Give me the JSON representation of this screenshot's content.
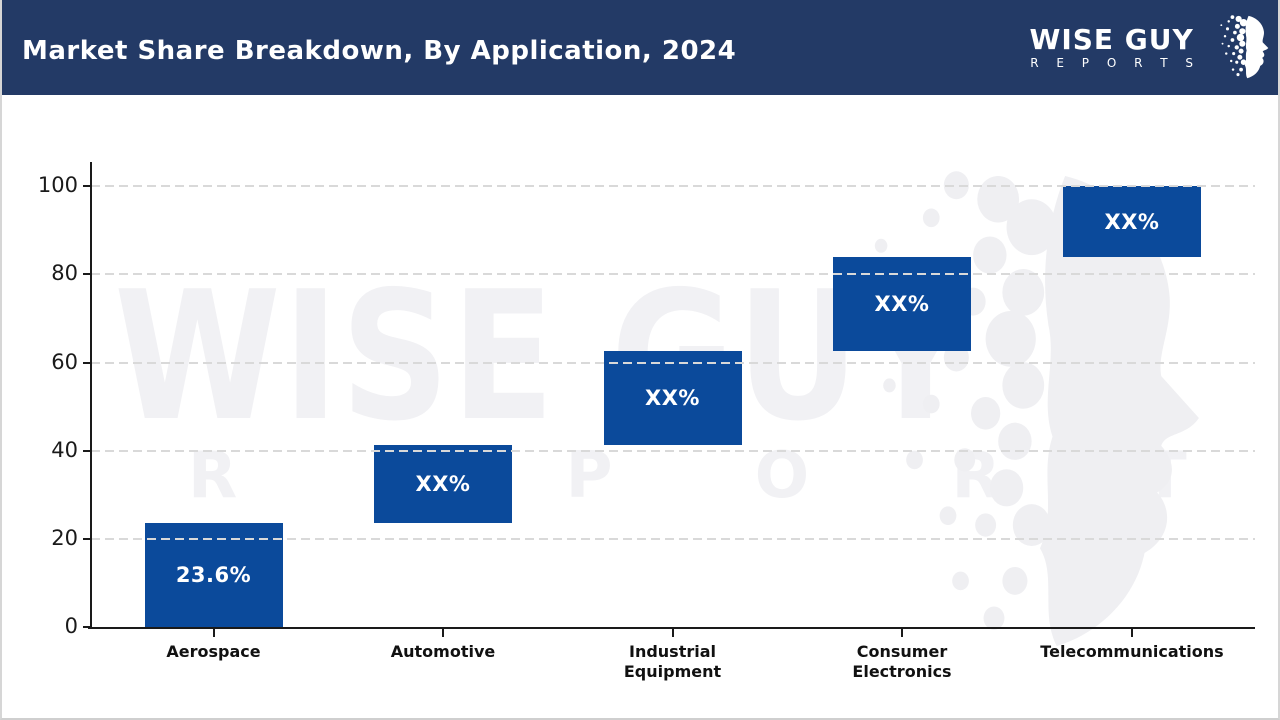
{
  "header": {
    "title": "Market Share Breakdown, By Application, 2024",
    "bg_color": "#233a66",
    "logo": {
      "line1": "WISE GUY",
      "line2": "R E P O R T S"
    }
  },
  "watermark": {
    "line1": "WISE GUY",
    "line2": "R E P O R T S"
  },
  "chart_data": {
    "type": "bar",
    "subtype": "waterfall-floating-bars",
    "title": "Market Share Breakdown, By Application, 2024",
    "categories": [
      "Aerospace",
      "Automotive",
      "Industrial Equipment",
      "Consumer Electronics",
      "Telecommunications"
    ],
    "category_label_lines": [
      [
        "Aerospace"
      ],
      [
        "Automotive"
      ],
      [
        "Industrial",
        "Equipment"
      ],
      [
        "Consumer",
        "Electronics"
      ],
      [
        "Telecommunications"
      ]
    ],
    "segments": [
      {
        "category": "Aerospace",
        "start": 0,
        "end": 23.6,
        "label": "23.6%"
      },
      {
        "category": "Automotive",
        "start": 23.6,
        "end": 41.2,
        "label": "XX%"
      },
      {
        "category": "Industrial Equipment",
        "start": 41.2,
        "end": 62.6,
        "label": "XX%"
      },
      {
        "category": "Consumer Electronics",
        "start": 62.6,
        "end": 84.0,
        "label": "XX%"
      },
      {
        "category": "Telecommunications",
        "start": 84.0,
        "end": 100.0,
        "label": "XX%"
      }
    ],
    "xlabel": "",
    "ylabel": "",
    "ylim": [
      0,
      100
    ],
    "yticks": [
      0,
      20,
      40,
      60,
      80,
      100
    ],
    "grid": {
      "axis": "y",
      "style": "dashed",
      "drawn_above_bars": true
    },
    "legend": "none",
    "colors": {
      "bar": "#0b4a9b",
      "bar_label": "#ffffff",
      "axis": "#1a1a1a",
      "gridline": "#d9d9d9",
      "header_bg": "#233a66",
      "watermark": "#f1f1f4"
    }
  }
}
